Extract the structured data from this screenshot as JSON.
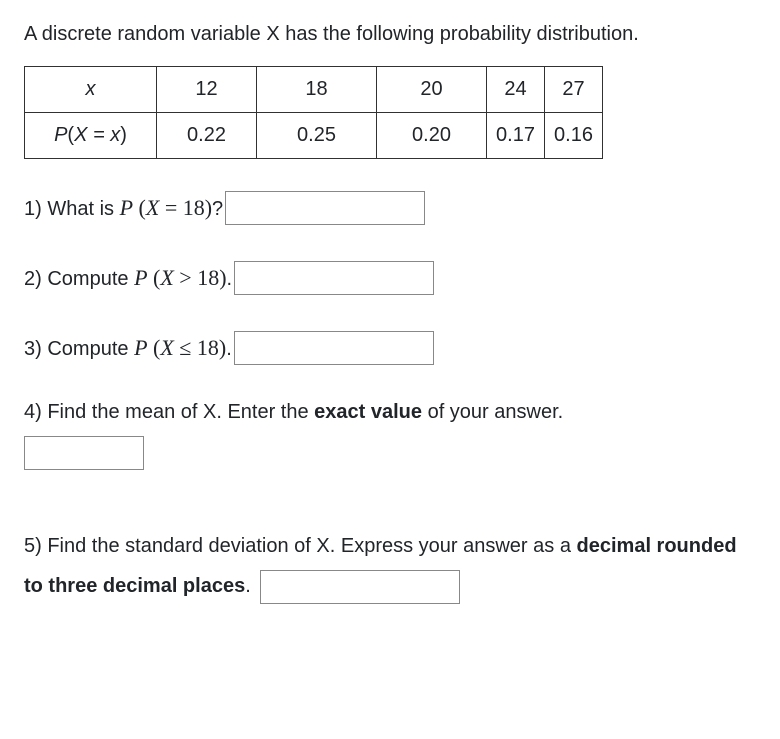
{
  "intro": "A discrete random variable X has the following probability distribution.",
  "table": {
    "row1_label": "x",
    "row2_label_prefix": "P(X = x)",
    "columns": [
      "12",
      "18",
      "20",
      "24",
      "27"
    ],
    "probs": [
      "0.22",
      "0.25",
      "0.20",
      "0.17",
      "0.16"
    ]
  },
  "q1": {
    "prefix": "1) What is ",
    "P": "P",
    "open": "(",
    "X": "X",
    "eq": " = 18)",
    "qmark": "?"
  },
  "q2": {
    "prefix": "2) Compute ",
    "P": "P",
    "open": "(",
    "X": "X",
    "gt": " > 18)",
    "period": "."
  },
  "q3": {
    "prefix": "3) Compute ",
    "P": "P",
    "open": "(",
    "X": "X",
    "le": " ≤ 18)",
    "period": "."
  },
  "q4": {
    "text_a": "4) Find the mean of X. Enter the ",
    "text_bold": "exact value",
    "text_b": " of your answer."
  },
  "q5": {
    "text_a": "5) Find the standard deviation of X. Express your answer as a ",
    "text_bold": "decimal rounded to three decimal places",
    "text_b": "."
  }
}
